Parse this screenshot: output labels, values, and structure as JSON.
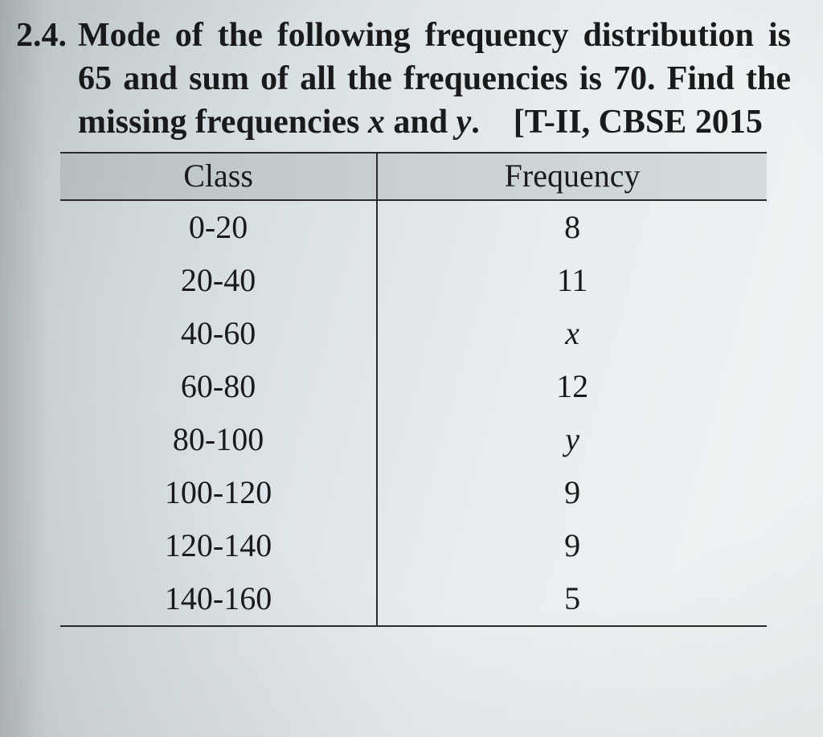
{
  "question": {
    "number": "2.4.",
    "text_part1": "Mode of the following frequency distribution is 65 and sum of all the frequencies is 70. Find the missing frequencies ",
    "var_x": "x",
    "text_and": " and ",
    "var_y": "y",
    "text_period": ".",
    "source": "[T-II, CBSE 2015"
  },
  "table": {
    "headers": {
      "col1": "Class",
      "col2": "Frequency"
    },
    "rows": [
      {
        "class": "0-20",
        "freq": "8",
        "is_var": false
      },
      {
        "class": "20-40",
        "freq": "11",
        "is_var": false
      },
      {
        "class": "40-60",
        "freq": "x",
        "is_var": true
      },
      {
        "class": "60-80",
        "freq": "12",
        "is_var": false
      },
      {
        "class": "80-100",
        "freq": "y",
        "is_var": true
      },
      {
        "class": "100-120",
        "freq": "9",
        "is_var": false
      },
      {
        "class": "120-140",
        "freq": "9",
        "is_var": false
      },
      {
        "class": "140-160",
        "freq": "5",
        "is_var": false
      }
    ],
    "column_widths": [
      "50%",
      "50%"
    ],
    "header_bg": "#c8d0d3",
    "border_color": "#2a2a2a",
    "font_size_pt": 30
  },
  "page_bg_gradient": [
    "#c5cdd0",
    "#f0f4f5"
  ],
  "text_color": "#1a1a1a"
}
